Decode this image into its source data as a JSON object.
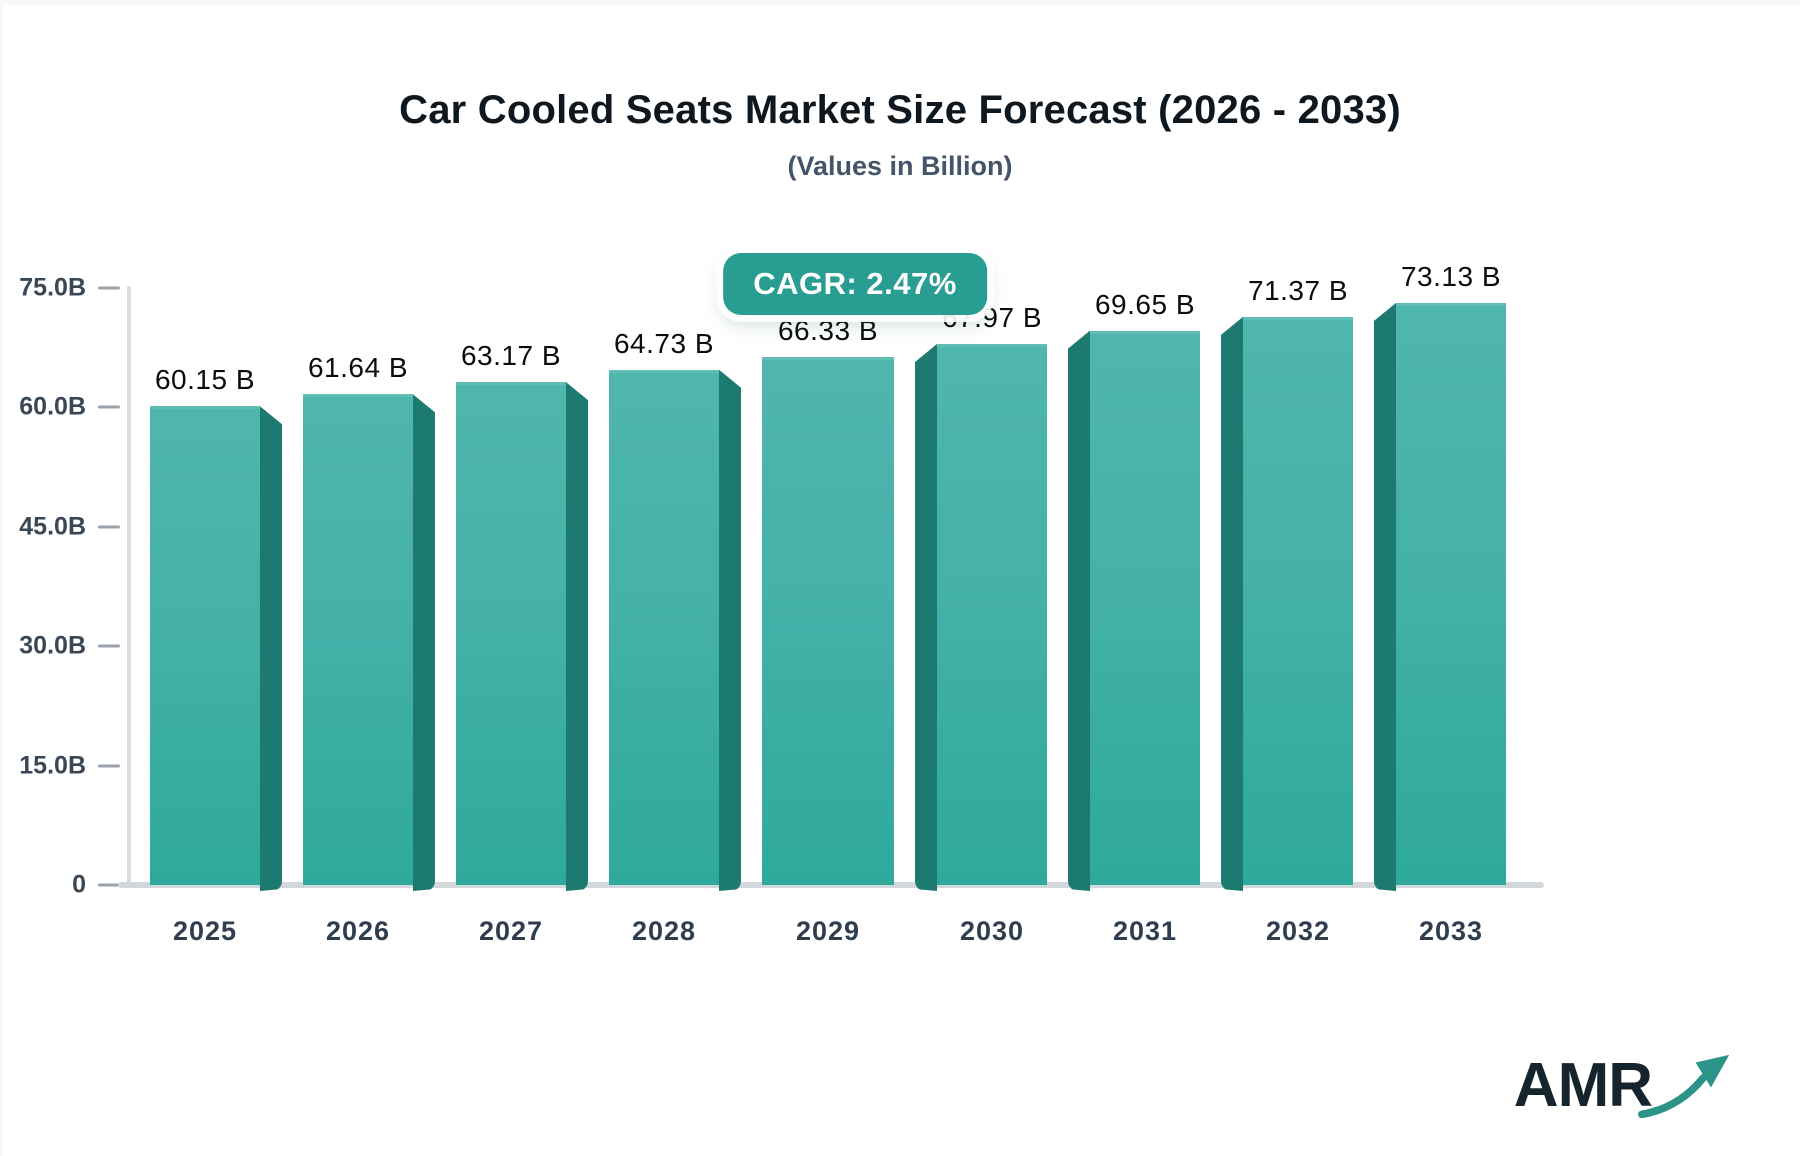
{
  "header": {
    "title": "Car Cooled Seats Market Size Forecast (2026 - 2033)",
    "subtitle": "(Values in Billion)"
  },
  "badge": {
    "label": "CAGR: 2.47%",
    "bg_color": "#2a9d93"
  },
  "logo": {
    "text": "AMR",
    "text_color": "#16242e",
    "arrow_color": "#2d9389"
  },
  "colors": {
    "bar_face_top": "#4fb6ad",
    "bar_face_bottom": "#2ea99b",
    "bar_side": "#1d7a70",
    "axis_line": "#d2d7db",
    "tick_text": "#3a4754",
    "year_text": "#2f3e4e",
    "value_text": "#0c0c0c"
  },
  "chart_data": {
    "type": "bar",
    "title": "Car Cooled Seats Market Size Forecast (2026 - 2033)",
    "subtitle": "(Values in Billion)",
    "categories": [
      "2025",
      "2026",
      "2027",
      "2028",
      "2029",
      "2030",
      "2031",
      "2032",
      "2033"
    ],
    "values": [
      60.15,
      61.64,
      63.17,
      64.73,
      66.33,
      67.97,
      69.65,
      71.37,
      73.13
    ],
    "value_labels": [
      "60.15 B",
      "61.64 B",
      "63.17 B",
      "64.73 B",
      "66.33 B",
      "67.97 B",
      "69.65 B",
      "71.37 B",
      "73.13 B"
    ],
    "xlabel": "",
    "ylabel": "",
    "ylim": [
      0,
      75
    ],
    "yticks": [
      {
        "value": 0,
        "label": "0"
      },
      {
        "value": 15,
        "label": "15.0B"
      },
      {
        "value": 30,
        "label": "30.0B"
      },
      {
        "value": 45,
        "label": "45.0B"
      },
      {
        "value": 60,
        "label": "60.0B"
      },
      {
        "value": 75,
        "label": "75.0B"
      }
    ],
    "grid": false,
    "legend": false,
    "style": "3d-perspective-center",
    "annotation": "CAGR: 2.47%"
  }
}
